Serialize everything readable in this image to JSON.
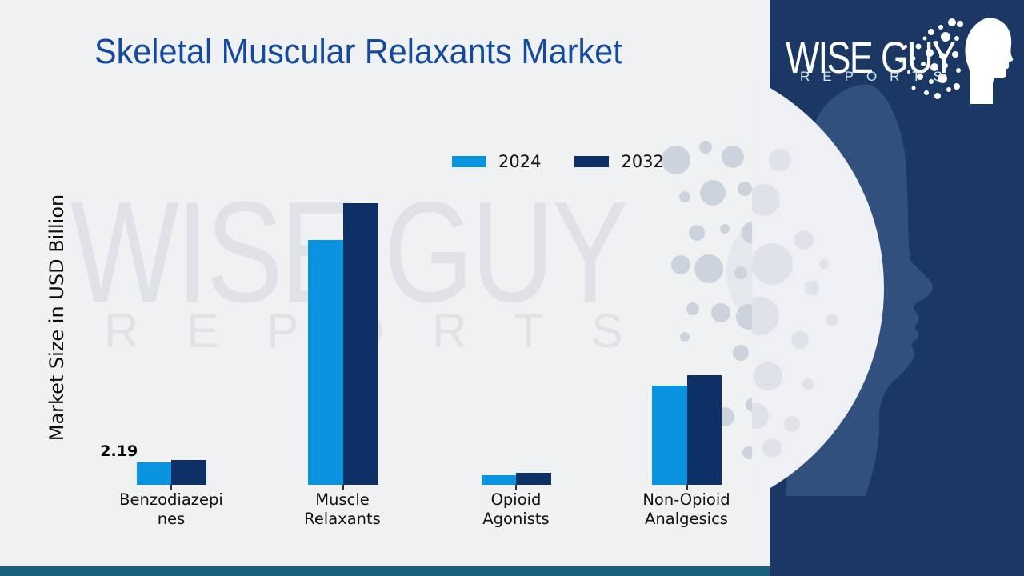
{
  "title": "Skeletal Muscular Relaxants Market",
  "y_axis_label": "Market Size in USD Billion",
  "watermark": {
    "line1": "WISE GUY",
    "line2": "REPORTS"
  },
  "brand": {
    "wordmark": "WISE GUY",
    "subtext": "REPORTS"
  },
  "colors": {
    "title_blue": "#14499e",
    "bar_2024": "#0a93de",
    "bar_2032": "#0d3166",
    "panel_navy": "#1b3763",
    "face_silhouette": "#31507e",
    "footer_teal": "#19607b",
    "watermark_gray": "#dfe2e7",
    "background": "#eff1f3"
  },
  "chart_data": {
    "type": "bar",
    "title": "Skeletal Muscular Relaxants Market",
    "ylabel": "Market Size in USD Billion",
    "categories": [
      "Benzodiazepines",
      "Muscle Relaxants",
      "Opioid Agonists",
      "Non-Opioid Analgesics"
    ],
    "series": [
      {
        "name": "2024",
        "color": "#0a93de",
        "values": [
          2.19,
          24.2,
          0.95,
          9.8
        ]
      },
      {
        "name": "2032",
        "color": "#0d3166",
        "values": [
          2.43,
          27.8,
          1.19,
          10.8
        ]
      }
    ],
    "data_labels": [
      {
        "series": "2024",
        "category_index": 0,
        "text": "2.19"
      }
    ],
    "ylim": [
      0,
      30
    ],
    "grid": false,
    "legend_position": "top-center",
    "y_axis_visible": false
  }
}
